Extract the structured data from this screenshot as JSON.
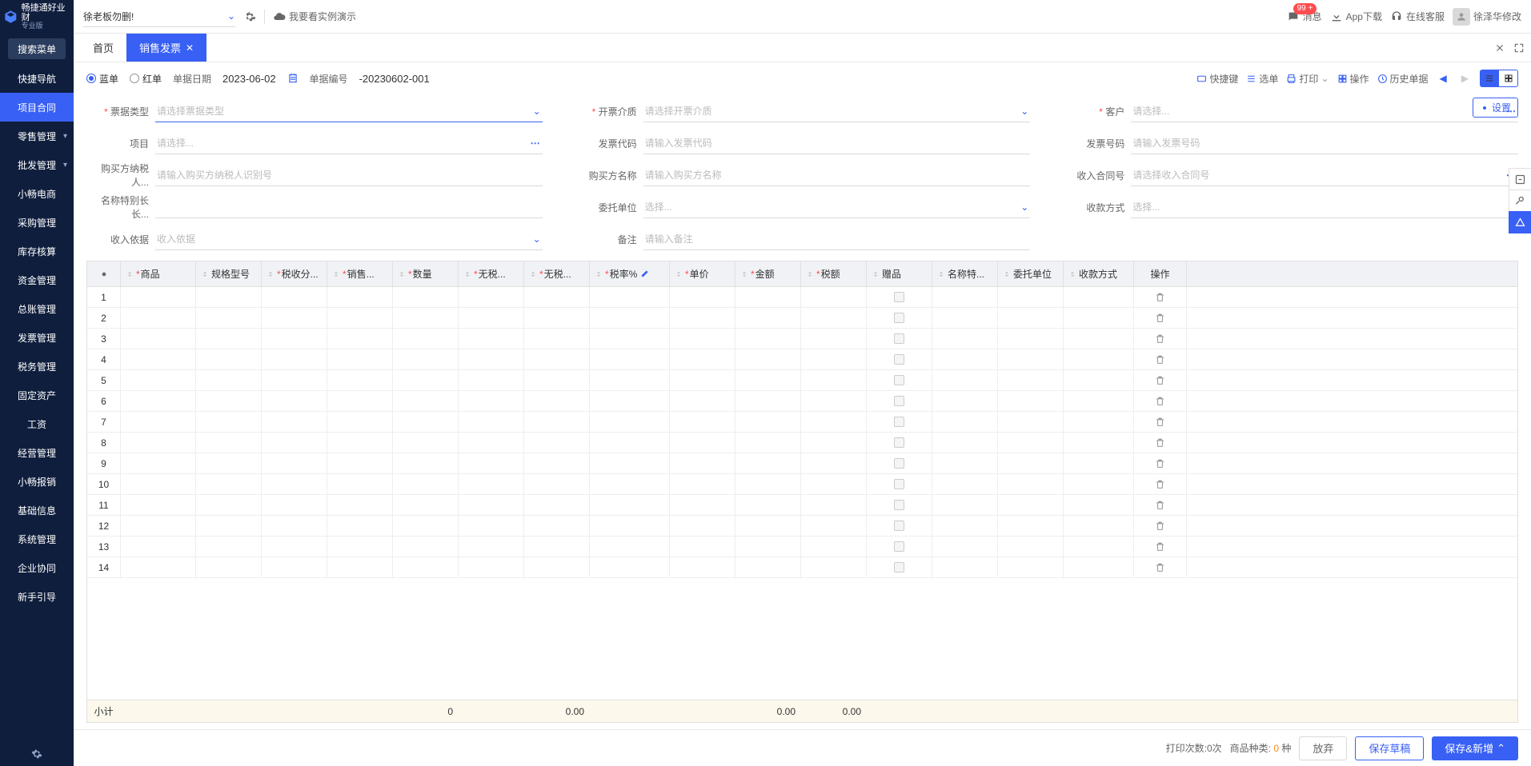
{
  "brand": {
    "name": "畅捷通好业财",
    "edition": "专业版"
  },
  "sidebar": {
    "search": "搜索菜单",
    "items": [
      {
        "label": "快捷导航",
        "arrow": false
      },
      {
        "label": "项目合同",
        "arrow": false,
        "active": true
      },
      {
        "label": "零售管理",
        "arrow": true
      },
      {
        "label": "批发管理",
        "arrow": true
      },
      {
        "label": "小畅电商",
        "arrow": false
      },
      {
        "label": "采购管理",
        "arrow": false
      },
      {
        "label": "库存核算",
        "arrow": false
      },
      {
        "label": "资金管理",
        "arrow": false
      },
      {
        "label": "总账管理",
        "arrow": false
      },
      {
        "label": "发票管理",
        "arrow": false
      },
      {
        "label": "税务管理",
        "arrow": false
      },
      {
        "label": "固定资产",
        "arrow": false
      },
      {
        "label": "工资",
        "arrow": false
      },
      {
        "label": "经营管理",
        "arrow": false
      },
      {
        "label": "小畅报销",
        "arrow": false
      },
      {
        "label": "基础信息",
        "arrow": false
      },
      {
        "label": "系统管理",
        "arrow": false
      },
      {
        "label": "企业协同",
        "arrow": false
      },
      {
        "label": "新手引导",
        "arrow": false
      }
    ]
  },
  "topbar": {
    "dropdown": "徐老板勿删!",
    "demo": "我要看实例演示",
    "badge": "99 +",
    "msg": "消息",
    "download": "App下载",
    "service": "在线客服",
    "user": "徐泽华修改"
  },
  "tabs": [
    {
      "label": "首页",
      "closable": false
    },
    {
      "label": "销售发票",
      "closable": true,
      "active": true
    }
  ],
  "toolbar": {
    "blue": "蓝单",
    "red": "红单",
    "dateLabel": "单据日期",
    "date": "2023-06-02",
    "noLabel": "单据编号",
    "no": "-20230602-001",
    "shortcut": "快捷键",
    "select": "选单",
    "print": "打印",
    "operate": "操作",
    "history": "历史单据"
  },
  "settingsBtn": "设置",
  "fields": {
    "r1": [
      {
        "label": "票据类型",
        "req": true,
        "ph": "请选择票据类型",
        "icon": "chev",
        "active": true
      },
      {
        "label": "开票介质",
        "req": true,
        "ph": "请选择开票介质",
        "icon": "chev"
      },
      {
        "label": "客户",
        "req": true,
        "ph": "请选择...",
        "icon": "dots"
      }
    ],
    "r2": [
      {
        "label": "项目",
        "ph": "请选择...",
        "icon": "dots"
      },
      {
        "label": "发票代码",
        "ph": "请输入发票代码"
      },
      {
        "label": "发票号码",
        "ph": "请输入发票号码"
      }
    ],
    "r3": [
      {
        "label": "购买方纳税人...",
        "ph": "请输入购买方纳税人识别号"
      },
      {
        "label": "购买方名称",
        "ph": "请输入购买方名称"
      },
      {
        "label": "收入合同号",
        "ph": "请选择收入合同号",
        "icon": "dots"
      }
    ],
    "r4": [
      {
        "label": "名称特别长长..."
      },
      {
        "label": "委托单位",
        "ph": "选择...",
        "icon": "chev"
      },
      {
        "label": "收款方式",
        "ph": "选择...",
        "icon": "chev"
      }
    ],
    "r5": [
      {
        "label": "收入依据",
        "ph": "收入依据",
        "icon": "chev"
      },
      {
        "label": "备注",
        "ph": "请输入备注"
      }
    ]
  },
  "table": {
    "cols": [
      {
        "key": "gear"
      },
      {
        "key": "product",
        "label": "商品",
        "req": true
      },
      {
        "key": "spec",
        "label": "规格型号"
      },
      {
        "key": "tax_cat",
        "label": "税收分...",
        "req": true
      },
      {
        "key": "sale",
        "label": "销售...",
        "req": true
      },
      {
        "key": "qty",
        "label": "数量",
        "req": true
      },
      {
        "key": "notax1",
        "label": "无税...",
        "req": true
      },
      {
        "key": "notax2",
        "label": "无税...",
        "req": true
      },
      {
        "key": "rate",
        "label": "税率%",
        "req": true,
        "edit": true
      },
      {
        "key": "price",
        "label": "单价",
        "req": true
      },
      {
        "key": "amount",
        "label": "金额",
        "req": true
      },
      {
        "key": "taxamt",
        "label": "税额",
        "req": true
      },
      {
        "key": "gift",
        "label": "赠品"
      },
      {
        "key": "namelong",
        "label": "名称特..."
      },
      {
        "key": "entrust",
        "label": "委托单位"
      },
      {
        "key": "paymethod",
        "label": "收款方式"
      },
      {
        "key": "op",
        "label": "操作"
      }
    ],
    "rowCount": 14,
    "subtotal": {
      "label": "小计",
      "qty": "0",
      "notax2": "0.00",
      "amount": "0.00",
      "taxamt": "0.00"
    }
  },
  "footer": {
    "printCount": "打印次数:0次",
    "kindsLabel": "商品种类:",
    "kindsVal": "0",
    "kindsUnit": "种",
    "discard": "放弃",
    "draft": "保存草稿",
    "save": "保存&新增"
  }
}
